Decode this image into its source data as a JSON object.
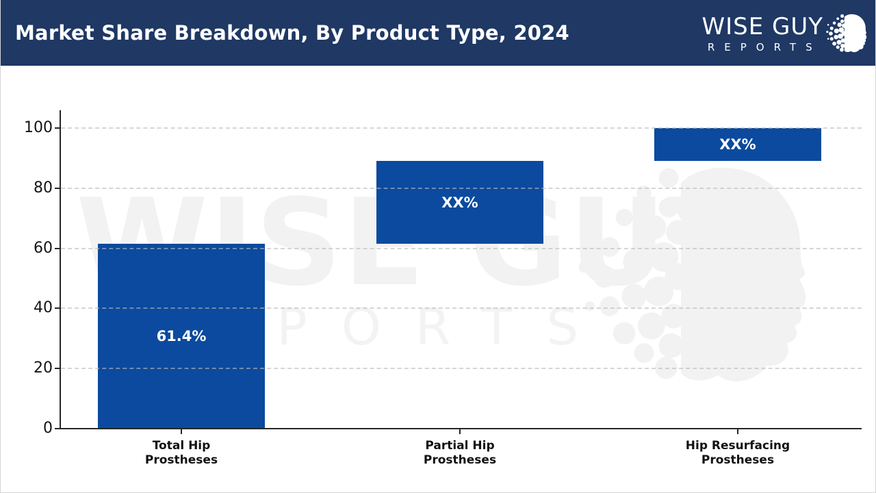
{
  "header": {
    "title": "Market Share Breakdown, By Product Type, 2024",
    "logo": {
      "line1": "WISE GUY",
      "line2": "REPORTS"
    }
  },
  "watermark": {
    "line1": "WISE GUY",
    "line2": "REPORTS"
  },
  "chart_data": {
    "type": "bar",
    "subtype": "waterfall-stacked-segments",
    "title": "Market Share Breakdown, By Product Type, 2024",
    "categories": [
      "Total Hip\nProstheses",
      "Partial Hip\nProstheses",
      "Hip Resurfacing\nProstheses"
    ],
    "segments": [
      {
        "category": "Total Hip Prostheses",
        "label": "61.4%",
        "start": 0,
        "end": 61.4
      },
      {
        "category": "Partial Hip Prostheses",
        "label": "XX%",
        "start": 61.4,
        "end": 89
      },
      {
        "category": "Hip Resurfacing Prostheses",
        "label": "XX%",
        "start": 89,
        "end": 100
      }
    ],
    "yticks": [
      0,
      20,
      40,
      60,
      80,
      100
    ],
    "ylim": [
      0,
      100
    ],
    "xlabel": "",
    "ylabel": "",
    "legend": "none",
    "grid": "dashed-horizontal",
    "colors": {
      "bar": "#0b4a9e",
      "bar_label": "#ffffff",
      "axis": "#262626",
      "tick_label": "#141414",
      "header_bg": "#1f3864",
      "watermark": "#f2f2f2"
    }
  }
}
